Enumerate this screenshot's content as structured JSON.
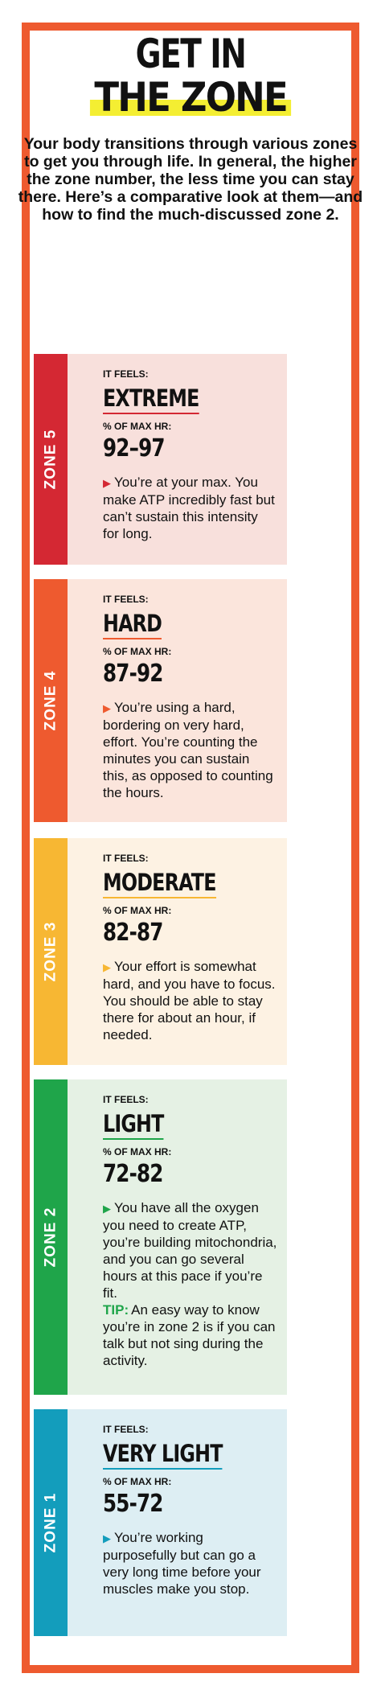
{
  "header": {
    "title_line1": "GET IN",
    "title_line2": "THE ZONE",
    "intro": "Your body transitions through various zones to get you through life. In general, the higher the zone number, the less time you can stay there. Here’s a comparative look at them—and how to find the much-discussed zone 2."
  },
  "colors": {
    "frame": "#ee5a2f",
    "highlight": "#f4ee32"
  },
  "zones": [
    {
      "name": "ZONE 5",
      "feels_label": "IT FEELS:",
      "feels": "EXTREME",
      "hr_label": "% OF MAX HR:",
      "range": "92–97",
      "description": "You’re at your max. You make ATP incredibly fast but can’t sustain this intensity for long.",
      "tab_color": "#d42833",
      "bg_color": "#f8e0dc",
      "accent_color": "#d42833"
    },
    {
      "name": "ZONE 4",
      "feels_label": "IT FEELS:",
      "feels": "HARD",
      "hr_label": "% OF MAX HR:",
      "range": "87-92",
      "description": "You’re using a hard, bordering on very hard, effort. You’re counting the minutes you can sustain this, as opposed to counting the hours.",
      "tab_color": "#ee5a2f",
      "bg_color": "#fbe5dc",
      "accent_color": "#ee5a2f"
    },
    {
      "name": "ZONE 3",
      "feels_label": "IT FEELS:",
      "feels": "MODERATE",
      "hr_label": "% OF MAX HR:",
      "range": "82-87",
      "description": "Your effort is somewhat hard, and you have to focus. You should be able to stay there for about an hour, if needed.",
      "tab_color": "#f7b733",
      "bg_color": "#fdf2e3",
      "accent_color": "#f7b733"
    },
    {
      "name": "ZONE 2",
      "feels_label": "IT FEELS:",
      "feels": "LIGHT",
      "hr_label": "% OF MAX HR:",
      "range": "72-82",
      "description": "You have all the oxygen you need to create ATP, you’re building mitochondria, and you can go several hours at this pace if you’re fit.",
      "tip_label": "TIP:",
      "tip": "An easy way to know you’re in zone 2 is if you can talk but not sing during the activity.",
      "tab_color": "#1fa54a",
      "bg_color": "#e5f1e4",
      "accent_color": "#1fa54a"
    },
    {
      "name": "ZONE 1",
      "feels_label": "IT FEELS:",
      "feels": "VERY LIGHT",
      "hr_label": "% OF MAX HR:",
      "range": "55-72",
      "description": "You’re working purposefully but can go a very long time before your muscles make you stop.",
      "tab_color": "#139dbc",
      "bg_color": "#ddeef3",
      "accent_color": "#139dbc"
    }
  ]
}
